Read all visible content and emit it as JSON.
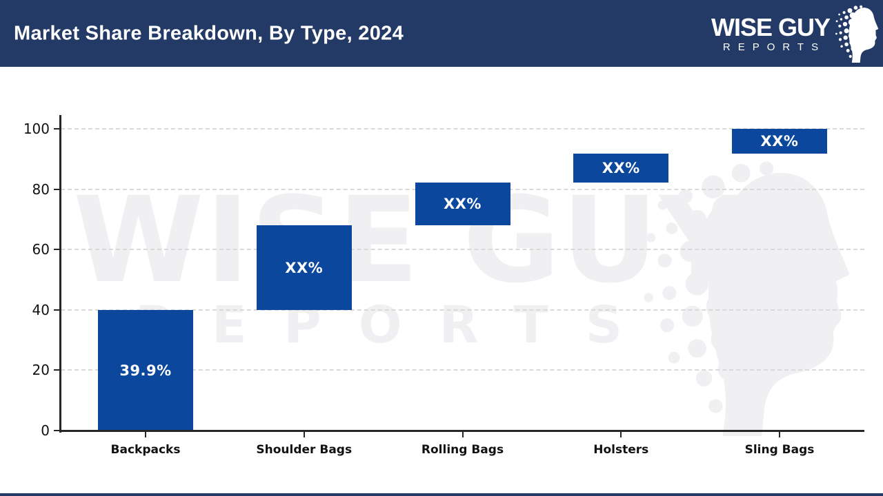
{
  "header": {
    "title": "Market Share Breakdown, By Type, 2024",
    "logo": {
      "wordmark": "WISE GUY",
      "subtext": "REPORTS"
    }
  },
  "watermark": {
    "line1": "WISE GUY",
    "line2": "REPORTS"
  },
  "colors": {
    "header_bg": "#233a66",
    "bar": "#0b479d",
    "bar_label": "#ffffff",
    "axis": "#262626",
    "tick_text": "#111111",
    "gridline": "#d9d9d9",
    "watermark": "#f0f0f2",
    "title_text": "#ffffff"
  },
  "chart_data": {
    "type": "bar",
    "subtype": "waterfall",
    "title": "Market Share Breakdown, By Type, 2024",
    "xlabel": "",
    "ylabel": "",
    "categories": [
      "Backpacks",
      "Shoulder Bags",
      "Rolling Bags",
      "Holsters",
      "Sling Bags"
    ],
    "segments": [
      {
        "category": "Backpacks",
        "start": 0,
        "end": 39.9,
        "label": "39.9%"
      },
      {
        "category": "Shoulder Bags",
        "start": 39.9,
        "end": 68.0,
        "label": "XX%"
      },
      {
        "category": "Rolling Bags",
        "start": 68.0,
        "end": 82.2,
        "label": "XX%"
      },
      {
        "category": "Holsters",
        "start": 82.2,
        "end": 91.8,
        "label": "XX%"
      },
      {
        "category": "Sling Bags",
        "start": 91.8,
        "end": 100.0,
        "label": "XX%"
      }
    ],
    "values_visible": [
      "39.9%",
      "XX%",
      "XX%",
      "XX%",
      "XX%"
    ],
    "ylim": [
      0,
      100
    ],
    "yticks": [
      0,
      20,
      40,
      60,
      80,
      100
    ],
    "grid": "horizontal-dashed",
    "legend": "none"
  }
}
